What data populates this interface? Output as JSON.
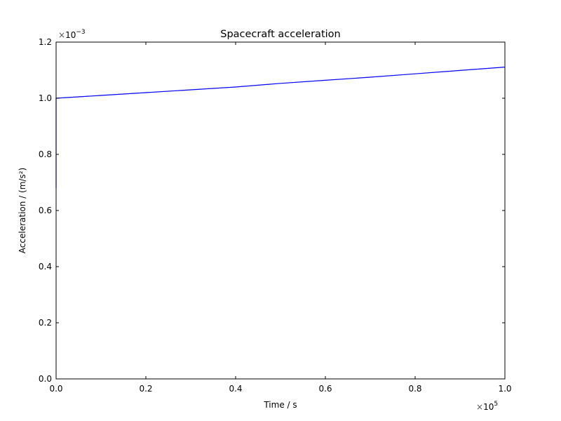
{
  "chart_data": {
    "type": "line",
    "title": "Spacecraft acceleration",
    "xlabel": "Time / s",
    "ylabel": "Acceleration / (m/s²)",
    "x_offset_label": "×10^5",
    "y_offset_label": "×10^-3",
    "xlim": [
      0,
      100000
    ],
    "ylim": [
      0,
      0.0012
    ],
    "x_ticks": [
      "0.0",
      "0.2",
      "0.4",
      "0.6",
      "0.8",
      "1.0"
    ],
    "y_ticks": [
      "0.0",
      "0.2",
      "0.4",
      "0.6",
      "0.8",
      "1.0",
      "1.2"
    ],
    "grid": false,
    "legend": null,
    "series": [
      {
        "name": "acceleration",
        "color": "#0000ff",
        "x": [
          0,
          0,
          10000,
          20000,
          30000,
          40000,
          50000,
          60000,
          70000,
          80000,
          90000,
          100000
        ],
        "y": [
          0.00068,
          0.001,
          0.00101,
          0.00102,
          0.00103,
          0.00104,
          0.001053,
          0.001064,
          0.001075,
          0.001087,
          0.001099,
          0.001111
        ]
      }
    ]
  }
}
